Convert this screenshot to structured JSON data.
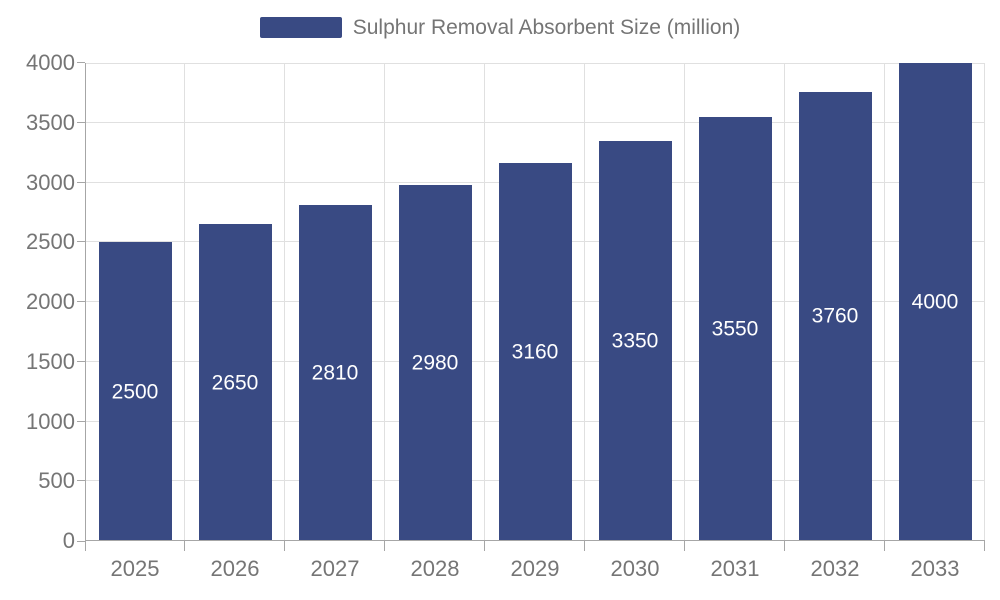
{
  "chart_data": {
    "type": "bar",
    "title": "",
    "categories": [
      "2025",
      "2026",
      "2027",
      "2028",
      "2029",
      "2030",
      "2031",
      "2032",
      "2033"
    ],
    "series": [
      {
        "name": "Sulphur Removal Absorbent Size (million)",
        "values": [
          2500,
          2650,
          2810,
          2980,
          3160,
          3350,
          3550,
          3760,
          4000
        ]
      }
    ],
    "xlabel": "",
    "ylabel": "",
    "ylim": [
      0,
      4000
    ],
    "ytick_step": 500,
    "grid": "both",
    "legend_position": "top-center",
    "value_label_position": "inside-center"
  },
  "colors": {
    "bar": "#394A83",
    "grid": "#E0E0E0",
    "axis": "#A6A6A6",
    "tick_label": "#757575",
    "legend_text": "#757575",
    "value_label": "#FFFFFF",
    "background": "#FFFFFF"
  }
}
